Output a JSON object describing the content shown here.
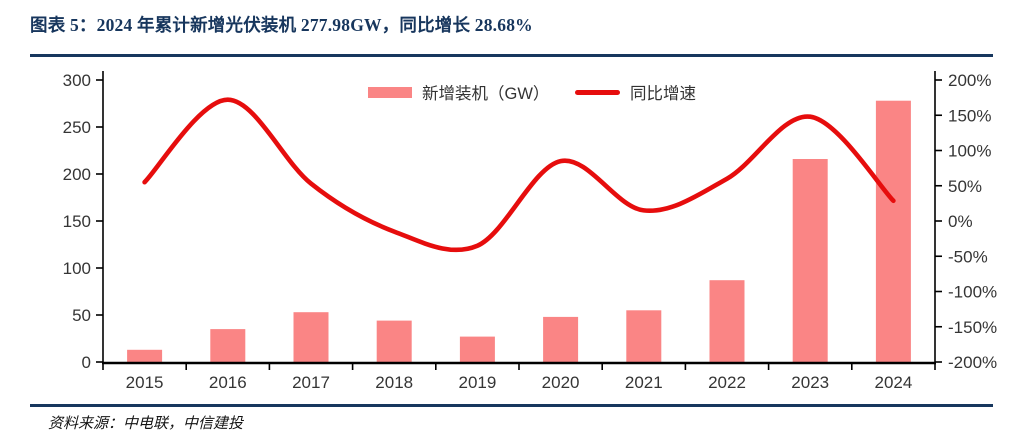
{
  "page": {
    "title": "图表 5：2024 年累计新增光伏装机 277.98GW，同比增长 28.68%",
    "source": "资料来源：中电联，中信建投"
  },
  "colors": {
    "title_navy": "#17365D",
    "rule_navy": "#17375E",
    "bar_fill": "#FA8585",
    "line_red": "#E60D0D",
    "axis_black": "#000000",
    "tick_label": "#353535"
  },
  "chart_data": {
    "type": "bar",
    "subtype": "combo-bar-line-dual-axis",
    "title": "2024 年累计新增光伏装机 277.98GW，同比增长 28.68%",
    "categories": [
      "2015",
      "2016",
      "2017",
      "2018",
      "2019",
      "2020",
      "2021",
      "2022",
      "2023",
      "2024"
    ],
    "series": [
      {
        "name": "新增装机（GW）",
        "type": "bar",
        "axis": "left",
        "unit": "GW",
        "values": [
          13,
          35,
          53,
          44,
          27,
          48,
          55,
          87,
          216,
          277.98
        ]
      },
      {
        "name": "同比增速",
        "type": "line",
        "axis": "right",
        "unit": "%",
        "smooth": true,
        "values": [
          55,
          172,
          53,
          -15,
          -35,
          85,
          15,
          60,
          148,
          28.68
        ]
      }
    ],
    "left_axis": {
      "min": 0,
      "max": 300,
      "step": 50,
      "values": [
        300,
        250,
        200,
        150,
        100,
        50,
        0
      ],
      "labels": [
        "300",
        "250",
        "200",
        "150",
        "100",
        "50",
        "0"
      ]
    },
    "right_axis": {
      "min": -200,
      "max": 200,
      "step": 50,
      "values": [
        200,
        150,
        100,
        50,
        0,
        -50,
        -100,
        -150,
        -200
      ],
      "labels": [
        "200%",
        "150%",
        "100%",
        "50%",
        "0%",
        "-50%",
        "-100%",
        "-150%",
        "-200%"
      ]
    },
    "xlabel": "",
    "ylabel": "",
    "grid": false,
    "legend_position": "top-center-inside"
  }
}
